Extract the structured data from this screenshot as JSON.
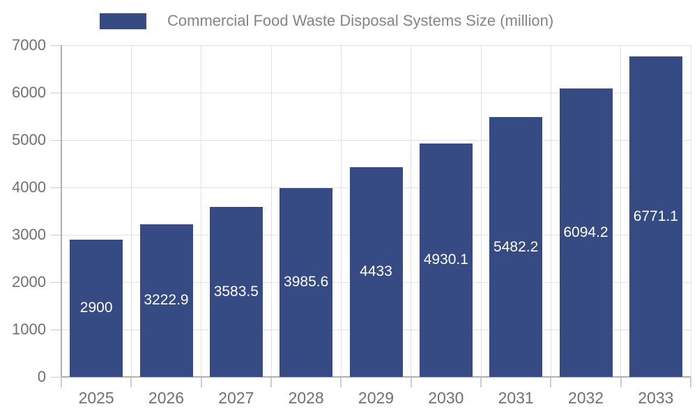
{
  "chart_data": {
    "type": "bar",
    "title": "Commercial Food Waste Disposal Systems Size (million)",
    "categories": [
      "2025",
      "2026",
      "2027",
      "2028",
      "2029",
      "2030",
      "2031",
      "2032",
      "2033"
    ],
    "values": [
      2900,
      3222.9,
      3583.5,
      3985.6,
      4433,
      4930.1,
      5482.2,
      6094.2,
      6771.1
    ],
    "value_labels": [
      "2900",
      "3222.9",
      "3583.5",
      "3985.6",
      "4433",
      "4930.1",
      "5482.2",
      "6094.2",
      "6771.1"
    ],
    "xlabel": "",
    "ylabel": "",
    "ylim": [
      0,
      7000
    ],
    "y_ticks": [
      0,
      1000,
      2000,
      3000,
      4000,
      5000,
      6000,
      7000
    ],
    "y_tick_labels": [
      "0",
      "1000",
      "2000",
      "3000",
      "4000",
      "5000",
      "6000",
      "7000"
    ],
    "grid": "on",
    "legend_position": "top-left",
    "colors": {
      "bar": "#364a84",
      "grid": "#e2e2e2",
      "axis": "#b0b0b0",
      "tick": "#cccccc",
      "title_text": "#848484",
      "axis_label_text": "#707070",
      "value_label_text": "#ffffff"
    }
  }
}
